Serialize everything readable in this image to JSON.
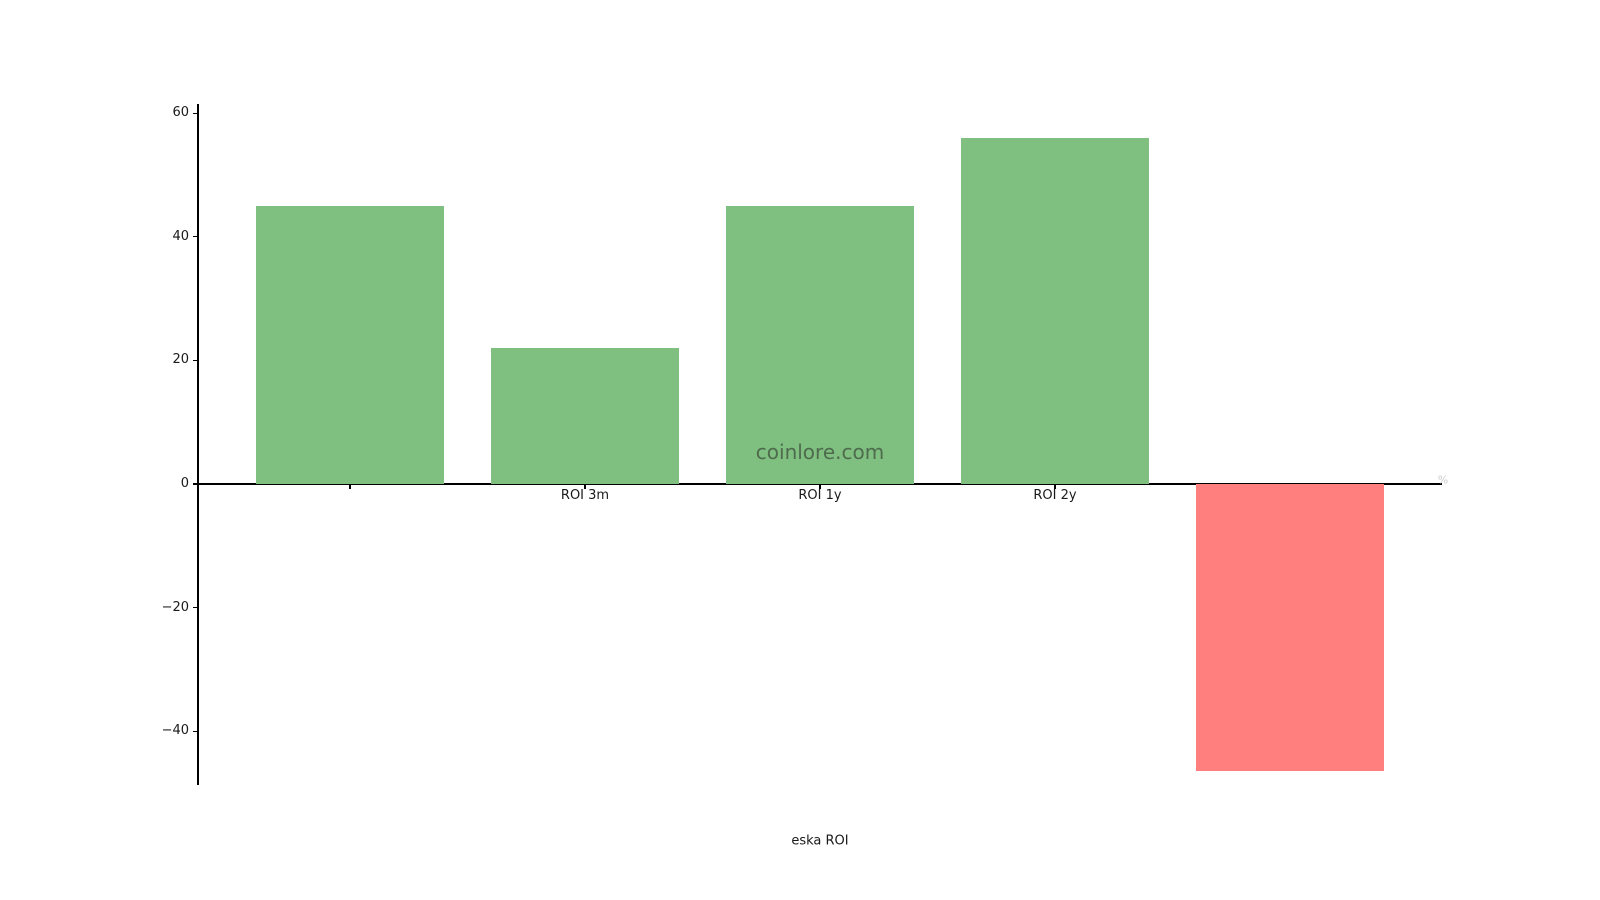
{
  "chart_data": {
    "type": "bar",
    "title": "",
    "xlabel": "eska ROI",
    "ylabel": "",
    "categories": [
      "",
      "ROI 3m",
      "ROI 1y",
      "ROI 2y",
      ""
    ],
    "values": [
      45,
      22,
      45,
      56,
      -46.5
    ],
    "x_ticks_visible": [
      true,
      true,
      true,
      true,
      false
    ],
    "y_ticks": [
      60,
      40,
      20,
      0,
      -20,
      -40
    ],
    "ylim": [
      -48.7,
      61.5
    ],
    "grid": false,
    "legend": null,
    "watermark": "coinlore.com",
    "axis_end_mark": "%",
    "colors": {
      "positive": "#7fbf7f",
      "negative": "#ff7f7f",
      "axis": "#000000",
      "text": "#1a1a1a",
      "watermark_text": "#6b6b6b"
    }
  }
}
